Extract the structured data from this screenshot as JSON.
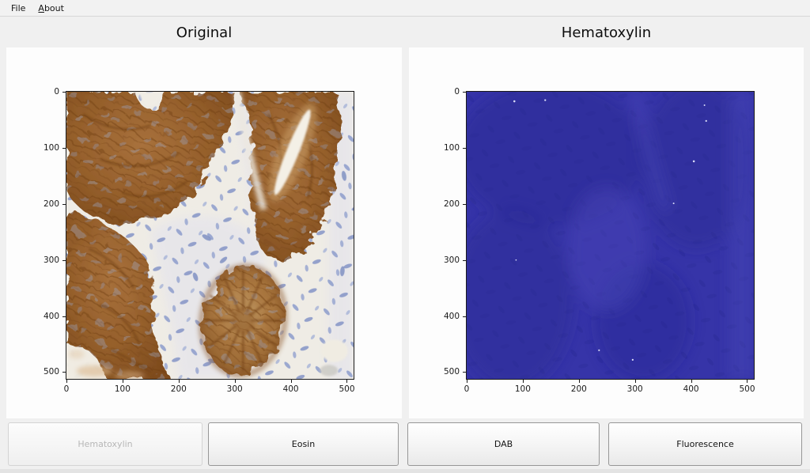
{
  "app": {
    "window_bg": "#f0f0f0",
    "panel_bg": "#fdfdfd"
  },
  "menubar": {
    "items": [
      {
        "label": "File"
      },
      {
        "label": "About"
      }
    ]
  },
  "panels": [
    {
      "title": "Original",
      "plot": {
        "type": "image",
        "content": "IHC histology micrograph: brown DAB-stained glandular epithelium with pale stroma and blue hematoxylin nuclei",
        "range_max": 512,
        "x_ticks": [
          {
            "v": 0,
            "t": "0"
          },
          {
            "v": 100,
            "t": "100"
          },
          {
            "v": 200,
            "t": "200"
          },
          {
            "v": 300,
            "t": "300"
          },
          {
            "v": 400,
            "t": "400"
          },
          {
            "v": 500,
            "t": "500"
          }
        ],
        "y_ticks": [
          {
            "v": 0,
            "t": "0"
          },
          {
            "v": 100,
            "t": "100"
          },
          {
            "v": 200,
            "t": "200"
          },
          {
            "v": 300,
            "t": "300"
          },
          {
            "v": 400,
            "t": "400"
          },
          {
            "v": 500,
            "t": "500"
          }
        ]
      }
    },
    {
      "title": "Hematoxylin",
      "plot": {
        "type": "image",
        "content": "Hematoxylin channel rendering: uniform deep blue field with faint darker tissue mottling and sparse light specks",
        "range_max": 512,
        "x_ticks": [
          {
            "v": 0,
            "t": "0"
          },
          {
            "v": 100,
            "t": "100"
          },
          {
            "v": 200,
            "t": "200"
          },
          {
            "v": 300,
            "t": "300"
          },
          {
            "v": 400,
            "t": "400"
          },
          {
            "v": 500,
            "t": "500"
          }
        ],
        "y_ticks": [
          {
            "v": 0,
            "t": "0"
          },
          {
            "v": 100,
            "t": "100"
          },
          {
            "v": 200,
            "t": "200"
          },
          {
            "v": 300,
            "t": "300"
          },
          {
            "v": 400,
            "t": "400"
          },
          {
            "v": 500,
            "t": "500"
          }
        ]
      }
    }
  ],
  "buttons": [
    {
      "label": "Hematoxylin",
      "enabled": false
    },
    {
      "label": "Eosin",
      "enabled": true
    },
    {
      "label": "DAB",
      "enabled": true
    },
    {
      "label": "Fluorescence",
      "enabled": true
    }
  ],
  "colors": {
    "hematoxylin_blue": "#3634a8",
    "dab_brown": "#96602c",
    "stroma_nucleus_blue": "#8c9ccb",
    "disabled_text": "#b7b7b7",
    "axis_color": "#1a1a1a"
  }
}
